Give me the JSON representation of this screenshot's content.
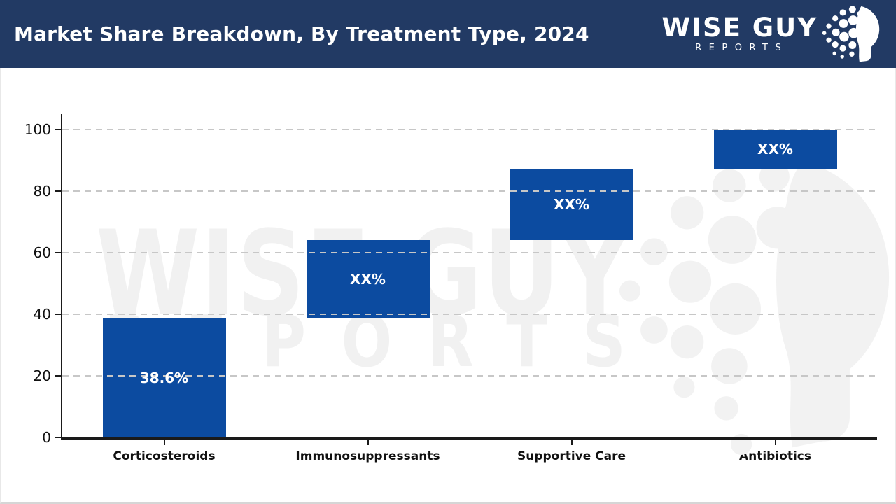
{
  "header": {
    "title": "Market Share Breakdown, By Treatment Type, 2024",
    "background_color": "#223A64",
    "logo": {
      "wordmark": "WISE GUY",
      "subtitle": "REPORTS"
    }
  },
  "watermark": {
    "wordmark": "WISE GUY",
    "subtitle": "REPORTS"
  },
  "chart_data": {
    "type": "bar",
    "subtype": "waterfall",
    "title": "Market Share Breakdown, By Treatment Type, 2024",
    "categories": [
      "Corticosteroids",
      "Immunosuppressants",
      "Supportive Care",
      "Antibiotics"
    ],
    "segments": [
      {
        "category": "Corticosteroids",
        "start": 0,
        "end": 38.6,
        "value": 38.6,
        "label": "38.6%"
      },
      {
        "category": "Immunosuppressants",
        "start": 38.6,
        "end": 64.1,
        "value": 25.5,
        "label": "XX%"
      },
      {
        "category": "Supportive Care",
        "start": 64.1,
        "end": 87.3,
        "value": 23.2,
        "label": "XX%"
      },
      {
        "category": "Antibiotics",
        "start": 87.3,
        "end": 100,
        "value": 12.7,
        "label": "XX%"
      }
    ],
    "y_ticks": [
      0,
      20,
      40,
      60,
      80,
      100
    ],
    "ylim": [
      0,
      105
    ],
    "xlabel": "",
    "ylabel": "",
    "grid": true,
    "grid_style": "dashed",
    "legend_position": "none",
    "bar_color": "#0C4BA0",
    "bar_label_color": "#FFFFFF",
    "axis_color": "#1A1A1A",
    "tick_label_color": "#111111"
  }
}
